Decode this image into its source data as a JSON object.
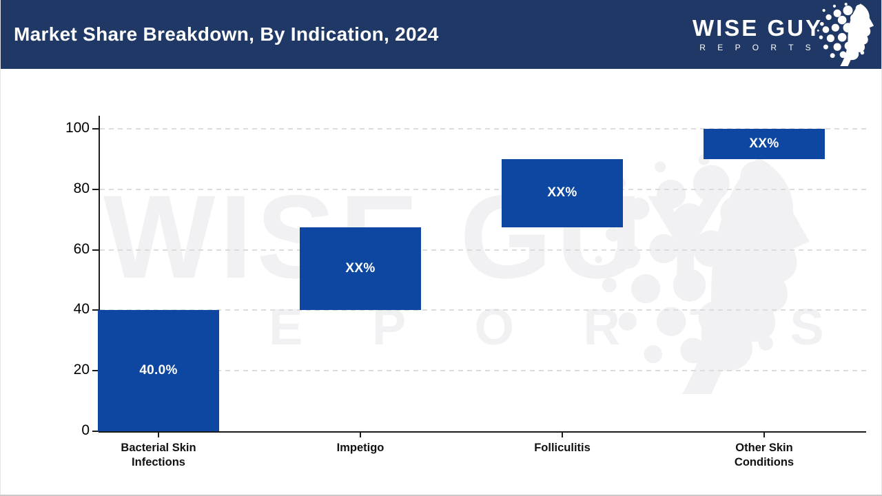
{
  "header": {
    "title": "Market Share Breakdown, By Indication, 2024",
    "brand": {
      "name_top": "WISE GUY",
      "name_bottom": "R E P O R T S"
    }
  },
  "watermark": {
    "line1": "WISE GUY",
    "line2": "R E P O R T S"
  },
  "chart_data": {
    "type": "bar",
    "variant": "waterfall",
    "title": "Market Share Breakdown, By Indication, 2024",
    "categories": [
      "Bacterial Skin Infections",
      "Impetigo",
      "Folliculitis",
      "Other Skin Conditions"
    ],
    "category_label_lines": [
      [
        "Bacterial Skin",
        "Infections"
      ],
      [
        "Impetigo"
      ],
      [
        "Folliculitis"
      ],
      [
        "Other Skin",
        "Conditions"
      ]
    ],
    "segments": [
      {
        "category": "Bacterial Skin Infections",
        "start": 0,
        "end": 40,
        "label": "40.0%"
      },
      {
        "category": "Impetigo",
        "start": 40,
        "end": 67.5,
        "label": "XX%"
      },
      {
        "category": "Folliculitis",
        "start": 67.5,
        "end": 90,
        "label": "XX%"
      },
      {
        "category": "Other Skin Conditions",
        "start": 90,
        "end": 100,
        "label": "XX%"
      }
    ],
    "xlabel": "",
    "ylabel": "",
    "ylim": [
      0,
      100
    ],
    "yticks": [
      0,
      20,
      40,
      60,
      80,
      100
    ],
    "grid": "horizontal dashed",
    "legend": "none",
    "colors": {
      "bar": "#0d47a1",
      "bar_label": "#ffffff",
      "axis": "#1a1a1a",
      "grid": "#dcdcdc",
      "header_bg": "#1f3866",
      "watermark": "#f1f1f3"
    }
  }
}
